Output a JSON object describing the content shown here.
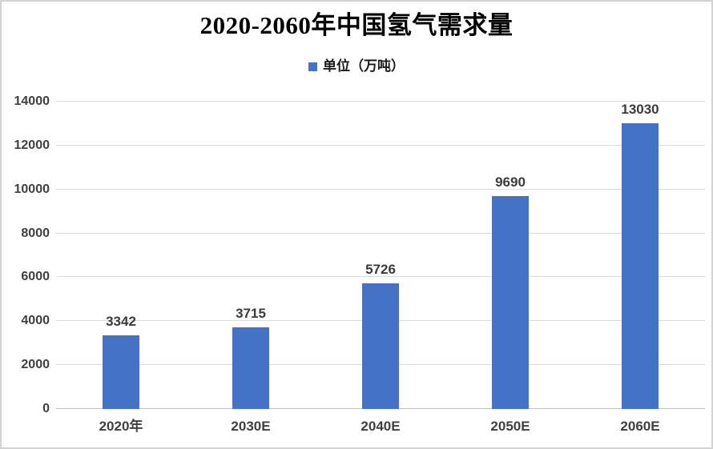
{
  "chart_data": {
    "type": "bar",
    "title": "2020-2060年中国氢气需求量",
    "legend_label": "单位（万吨）",
    "legend_position": "top",
    "categories": [
      "2020年",
      "2030E",
      "2040E",
      "2050E",
      "2060E"
    ],
    "values": [
      3342,
      3715,
      5726,
      9690,
      13030
    ],
    "xlabel": "",
    "ylabel": "",
    "ylim": [
      0,
      14000
    ],
    "ytick_step": 2000,
    "grid": true,
    "bar_color": "#4472C4",
    "gridline_color": "#dcdcdc",
    "baseline_color": "#bfbfbf",
    "label_color": "#3b3b3b"
  }
}
